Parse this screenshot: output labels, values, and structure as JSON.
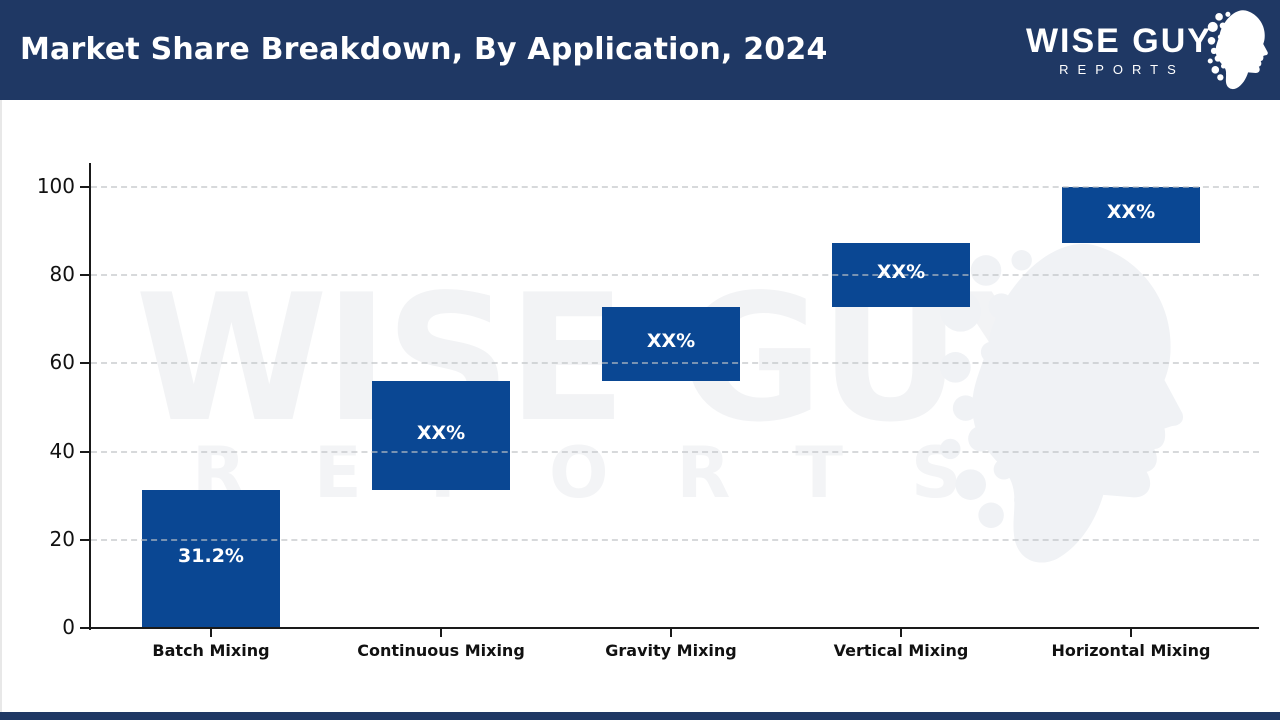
{
  "header": {
    "title": "Market Share Breakdown, By Application, 2024",
    "logo": {
      "line1": "WISE GUY",
      "line2": "REPORTS"
    }
  },
  "watermark": {
    "line1": "WISE GUY",
    "line2": "REPORTS"
  },
  "colors": {
    "header_navy": "#1f3864",
    "bar_blue": "#0a4793",
    "grid_gray": "#d9d9d9",
    "watermark_gray": "#f2f3f5"
  },
  "chart_data": {
    "type": "bar",
    "subtype": "floating-segment-waterfall",
    "title": "Market Share Breakdown, By Application, 2024",
    "categories": [
      "Batch Mixing",
      "Continuous Mixing",
      "Gravity Mixing",
      "Vertical Mixing",
      "Horizontal Mixing"
    ],
    "segments": [
      {
        "category": "Batch Mixing",
        "start": 0,
        "end": 31.2,
        "label": "31.2%"
      },
      {
        "category": "Continuous Mixing",
        "start": 31.2,
        "end": 56,
        "label": "XX%"
      },
      {
        "category": "Gravity Mixing",
        "start": 56,
        "end": 72.8,
        "label": "XX%"
      },
      {
        "category": "Vertical Mixing",
        "start": 72.8,
        "end": 87.3,
        "label": "XX%"
      },
      {
        "category": "Horizontal Mixing",
        "start": 87.3,
        "end": 100,
        "label": "XX%"
      }
    ],
    "yticks": [
      0,
      20,
      40,
      60,
      80,
      100
    ],
    "ylim": [
      0,
      105
    ],
    "xlabel": "",
    "ylabel": "",
    "grid": "horizontal-dashed",
    "legend": "none",
    "bar_color": "#0a4793"
  }
}
